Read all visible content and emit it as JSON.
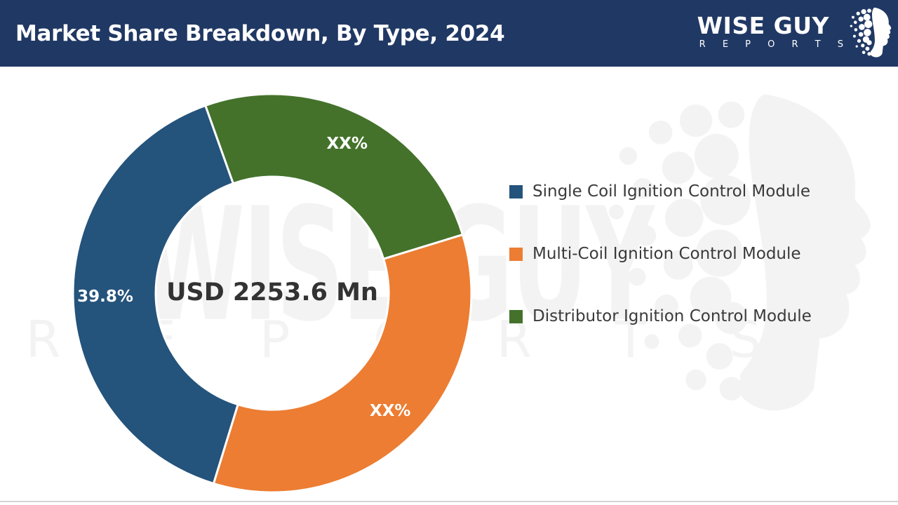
{
  "header": {
    "title": "Market Share Breakdown, By Type, 2024",
    "logo": {
      "line1": "WISE GUY",
      "line2": "R E P O R T S"
    }
  },
  "watermark": {
    "line1": "WISE GUY",
    "line2": "R E P O R T S"
  },
  "chart_data": {
    "type": "pie",
    "subtype": "donut",
    "title": "Market Share Breakdown, By Type, 2024",
    "center_label": "USD 2253.6 Mn",
    "legend_position": "right",
    "start_angle_deg": -19.6,
    "segments": [
      {
        "label": "Single Coil Ignition Control Module",
        "value_pct": 39.8,
        "display_pct": "39.8%",
        "color": "#24537B"
      },
      {
        "label": "Multi-Coil Ignition Control Module",
        "value_pct": 34.5,
        "display_pct": "XX%",
        "color": "#EC7D32"
      },
      {
        "label": "Distributor Ignition Control Module",
        "value_pct": 25.7,
        "display_pct": "XX%",
        "color": "#44722B"
      }
    ]
  }
}
